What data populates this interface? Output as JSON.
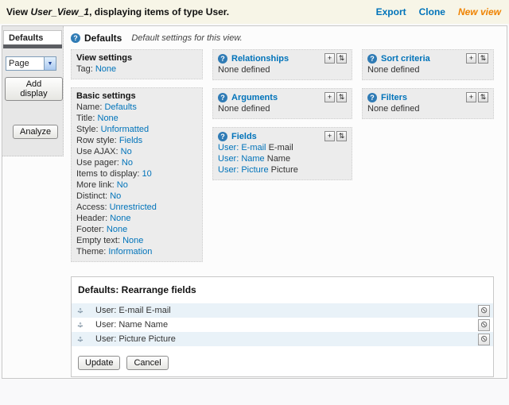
{
  "page": {
    "header": {
      "prefix": "View",
      "view_name": "User_View_1",
      "suffix": ", displaying items of type User.",
      "links": {
        "export": "Export",
        "clone": "Clone",
        "new_view": "New view"
      }
    },
    "icons": {
      "help": "?",
      "add": "+",
      "rearrange": "⇅",
      "remove": "⊘",
      "drag_horizontal": "↔",
      "drag_vertical": "↕",
      "select_arrow": "▼"
    },
    "sidebar": {
      "tab": "Defaults",
      "display_select_value": "Page",
      "add_display_label": "Add display",
      "analyze_label": "Analyze"
    },
    "display": {
      "title": "Defaults",
      "description": "Default settings for this view.",
      "view_settings": {
        "title": "View settings",
        "items": [
          {
            "label": "Tag:",
            "value": "None"
          }
        ]
      },
      "basic_settings": {
        "title": "Basic settings",
        "items": [
          {
            "label": "Name:",
            "value": "Defaults"
          },
          {
            "label": "Title:",
            "value": "None"
          },
          {
            "label": "Style:",
            "value": "Unformatted"
          },
          {
            "label": "Row style:",
            "value": "Fields"
          },
          {
            "label": "Use AJAX:",
            "value": "No"
          },
          {
            "label": "Use pager:",
            "value": "No"
          },
          {
            "label": "Items to display:",
            "value": "10"
          },
          {
            "label": "More link:",
            "value": "No"
          },
          {
            "label": "Distinct:",
            "value": "No"
          },
          {
            "label": "Access:",
            "value": "Unrestricted"
          },
          {
            "label": "Header:",
            "value": "None"
          },
          {
            "label": "Footer:",
            "value": "None"
          },
          {
            "label": "Empty text:",
            "value": "None"
          },
          {
            "label": "Theme:",
            "value": "Information"
          }
        ]
      },
      "relationships": {
        "title": "Relationships",
        "empty": "None defined"
      },
      "arguments": {
        "title": "Arguments",
        "empty": "None defined"
      },
      "fields": {
        "title": "Fields",
        "items": [
          {
            "link": "User: E-mail",
            "suffix": "E-mail"
          },
          {
            "link": "User: Name",
            "suffix": "Name"
          },
          {
            "link": "User: Picture",
            "suffix": "Picture"
          }
        ]
      },
      "sort_criteria": {
        "title": "Sort criteria",
        "empty": "None defined"
      },
      "filters": {
        "title": "Filters",
        "empty": "None defined"
      }
    },
    "rearrange": {
      "title": "Defaults: Rearrange fields",
      "rows": [
        {
          "label": "User: E-mail E-mail"
        },
        {
          "label": "User: Name Name"
        },
        {
          "label": "User: Picture Picture"
        }
      ],
      "update_label": "Update",
      "cancel_label": "Cancel"
    },
    "colors": {
      "link_blue": "#0073ba",
      "new_view_orange": "#ef8200",
      "header_cream": "#f7f5e7",
      "panel_gray": "#ececec",
      "row_highlight_blue": "#e9f2f8"
    }
  }
}
